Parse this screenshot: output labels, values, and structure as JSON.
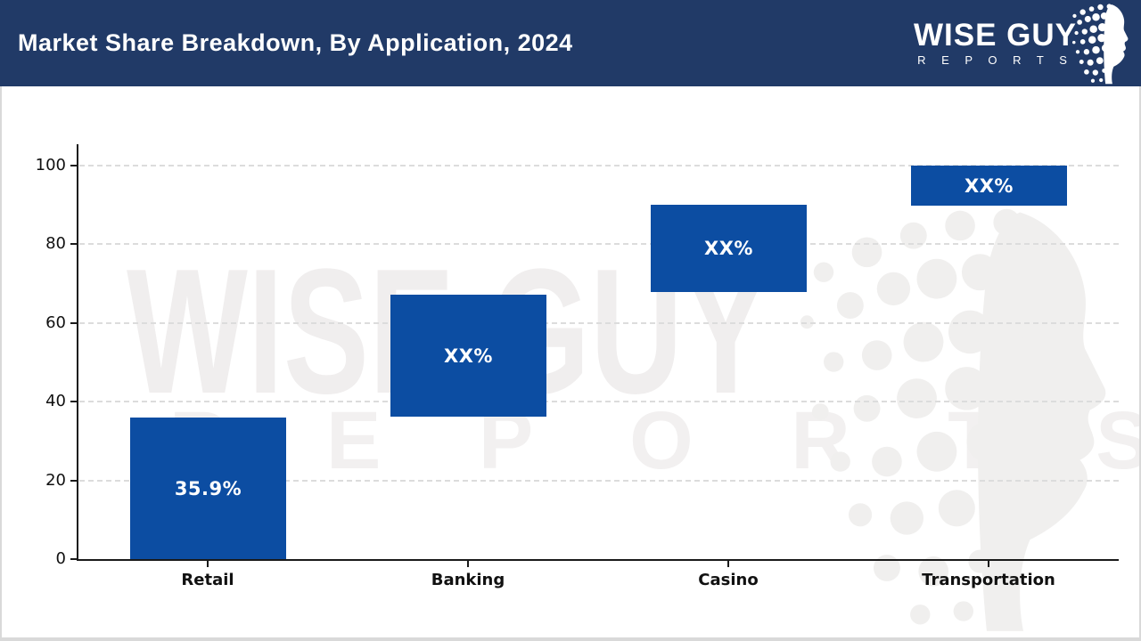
{
  "header": {
    "title": "Market Share Breakdown, By Application, 2024",
    "background_color": "#213a67",
    "logo": {
      "wordmark": "WISE GUY",
      "subtext": "R E P O R T S"
    }
  },
  "watermark": {
    "wordmark": "WISE GUY",
    "subtext": "R E P O R T S"
  },
  "chart_data": {
    "type": "bar",
    "variant": "waterfall",
    "title": "Market Share Breakdown, By Application, 2024",
    "categories": [
      "Retail",
      "Banking",
      "Casino",
      "Transportation"
    ],
    "segments": [
      {
        "category": "Retail",
        "start": 0,
        "end": 35.9,
        "label": "35.9%"
      },
      {
        "category": "Banking",
        "start": 36.2,
        "end": 67.3,
        "label": "XX%"
      },
      {
        "category": "Casino",
        "start": 67.9,
        "end": 90.0,
        "label": "XX%"
      },
      {
        "category": "Transportation",
        "start": 89.9,
        "end": 100.1,
        "label": "XX%"
      }
    ],
    "xlabel": "",
    "ylabel": "",
    "ylim": [
      0,
      105
    ],
    "yticks": [
      0,
      20,
      40,
      60,
      80,
      100
    ],
    "grid": "horizontal-dashed",
    "legend": "none",
    "colors": {
      "bar": "#0c4da2",
      "bar_label": "#ffffff",
      "axis": "#1a1a1a",
      "gridline": "#dcdcdc",
      "tick_text": "#111111"
    }
  }
}
